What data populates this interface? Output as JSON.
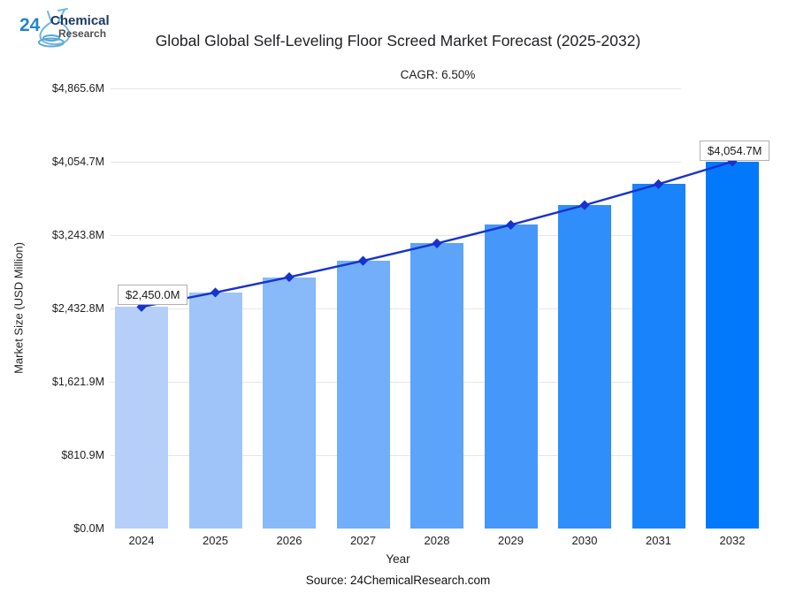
{
  "logo": {
    "number": "24",
    "line1": "Chemical",
    "line2": "Research"
  },
  "header": {
    "title": "Global Global Self-Leveling Floor Screed Market Forecast (2025-2032)",
    "subtitle": "CAGR: 6.50%"
  },
  "footer": {
    "source": "Source: 24ChemicalResearch.com"
  },
  "chart_data": {
    "type": "bar",
    "title": "Global Global Self-Leveling Floor Screed Market Forecast (2025-2032)",
    "subtitle": "CAGR: 6.50%",
    "categories": [
      "2024",
      "2025",
      "2026",
      "2027",
      "2028",
      "2029",
      "2030",
      "2031",
      "2032"
    ],
    "series": [
      {
        "name": "Market Size (USD Million)",
        "type": "bar",
        "values": [
          2450.0,
          2609.3,
          2778.9,
          2959.5,
          3151.8,
          3356.7,
          3574.9,
          3807.3,
          4054.7
        ],
        "bar_colors": [
          "#b5cff8",
          "#9fc4f9",
          "#88b9f9",
          "#72aef9",
          "#5ca3fa",
          "#4598fa",
          "#2f8efa",
          "#1883fa",
          "#0278fb"
        ]
      },
      {
        "name": "Trend",
        "type": "line",
        "values": [
          2450.0,
          2609.3,
          2778.9,
          2959.5,
          3151.8,
          3356.7,
          3574.9,
          3807.3,
          4054.7
        ],
        "color": "#1733cd",
        "marker": "diamond"
      }
    ],
    "xlabel": "Year",
    "ylabel": "Market Size (USD Million)",
    "ylim": [
      0,
      4865.6
    ],
    "yticks": [
      0.0,
      810.9,
      1621.9,
      2432.8,
      3243.8,
      4054.7,
      4865.6
    ],
    "ytick_labels": [
      "$0.0M",
      "$810.9M",
      "$1,621.9M",
      "$2,432.8M",
      "$3,243.8M",
      "$4,054.7M",
      "$4,865.6M"
    ],
    "grid": true,
    "legend": false,
    "annotations": [
      {
        "category": "2024",
        "text": "$2,450.0M"
      },
      {
        "category": "2032",
        "text": "$4,054.7M"
      }
    ]
  },
  "colors": {
    "grid": "#e6e6e6",
    "line": "#1733cd",
    "annotation_border": "#b0b0b0",
    "logo_blue": "#2285d0",
    "logo_navy": "#1c3a66"
  }
}
